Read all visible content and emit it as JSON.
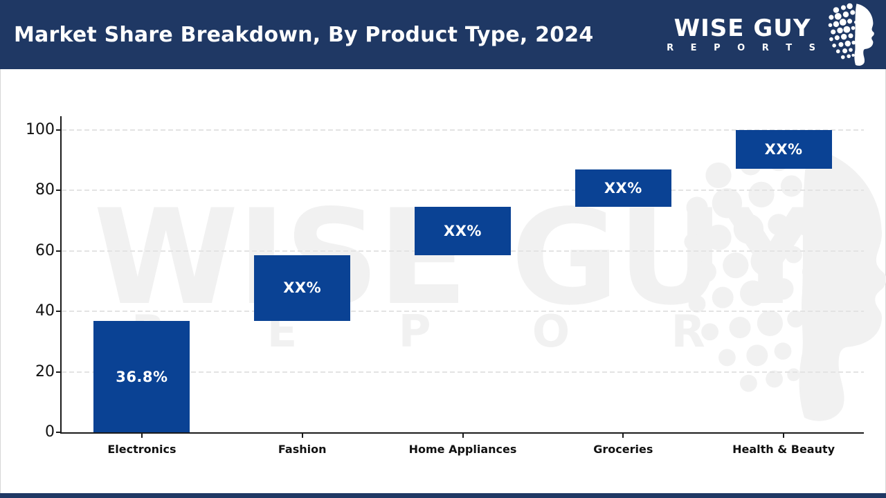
{
  "header": {
    "title": "Market Share Breakdown, By Product Type, 2024",
    "logo": {
      "name": "WISE GUY",
      "subname": "R E P O R T S"
    }
  },
  "watermark": {
    "name": "WISE GUY",
    "subname": "R E P O R T S"
  },
  "colors": {
    "header_bg": "#1f3864",
    "footer_bg": "#1f3864",
    "bar": "#0a4294",
    "bar_label": "#ffffff",
    "gridline": "#e3e3e3",
    "axis": "#1a1a1a",
    "watermark": "#f1f1f1"
  },
  "chart_data": {
    "type": "bar",
    "subtype": "waterfall",
    "title": "Market Share Breakdown, By Product Type, 2024",
    "categories": [
      "Electronics",
      "Fashion",
      "Home Appliances",
      "Groceries",
      "Health & Beauty"
    ],
    "segments": [
      {
        "category": "Electronics",
        "start": 0,
        "end": 36.8,
        "label": "36.8%"
      },
      {
        "category": "Fashion",
        "start": 36.8,
        "end": 58.6,
        "label": "XX%"
      },
      {
        "category": "Home Appliances",
        "start": 58.6,
        "end": 74.5,
        "label": "XX%"
      },
      {
        "category": "Groceries",
        "start": 74.6,
        "end": 86.8,
        "label": "XX%"
      },
      {
        "category": "Health & Beauty",
        "start": 87.2,
        "end": 100,
        "label": "XX%"
      }
    ],
    "yticks": [
      0,
      20,
      40,
      60,
      80,
      100
    ],
    "ylim": [
      0,
      104.5
    ],
    "grid": "dashed horizontal gridlines at y ticks",
    "legend": "none",
    "xlabel": "",
    "ylabel": ""
  }
}
